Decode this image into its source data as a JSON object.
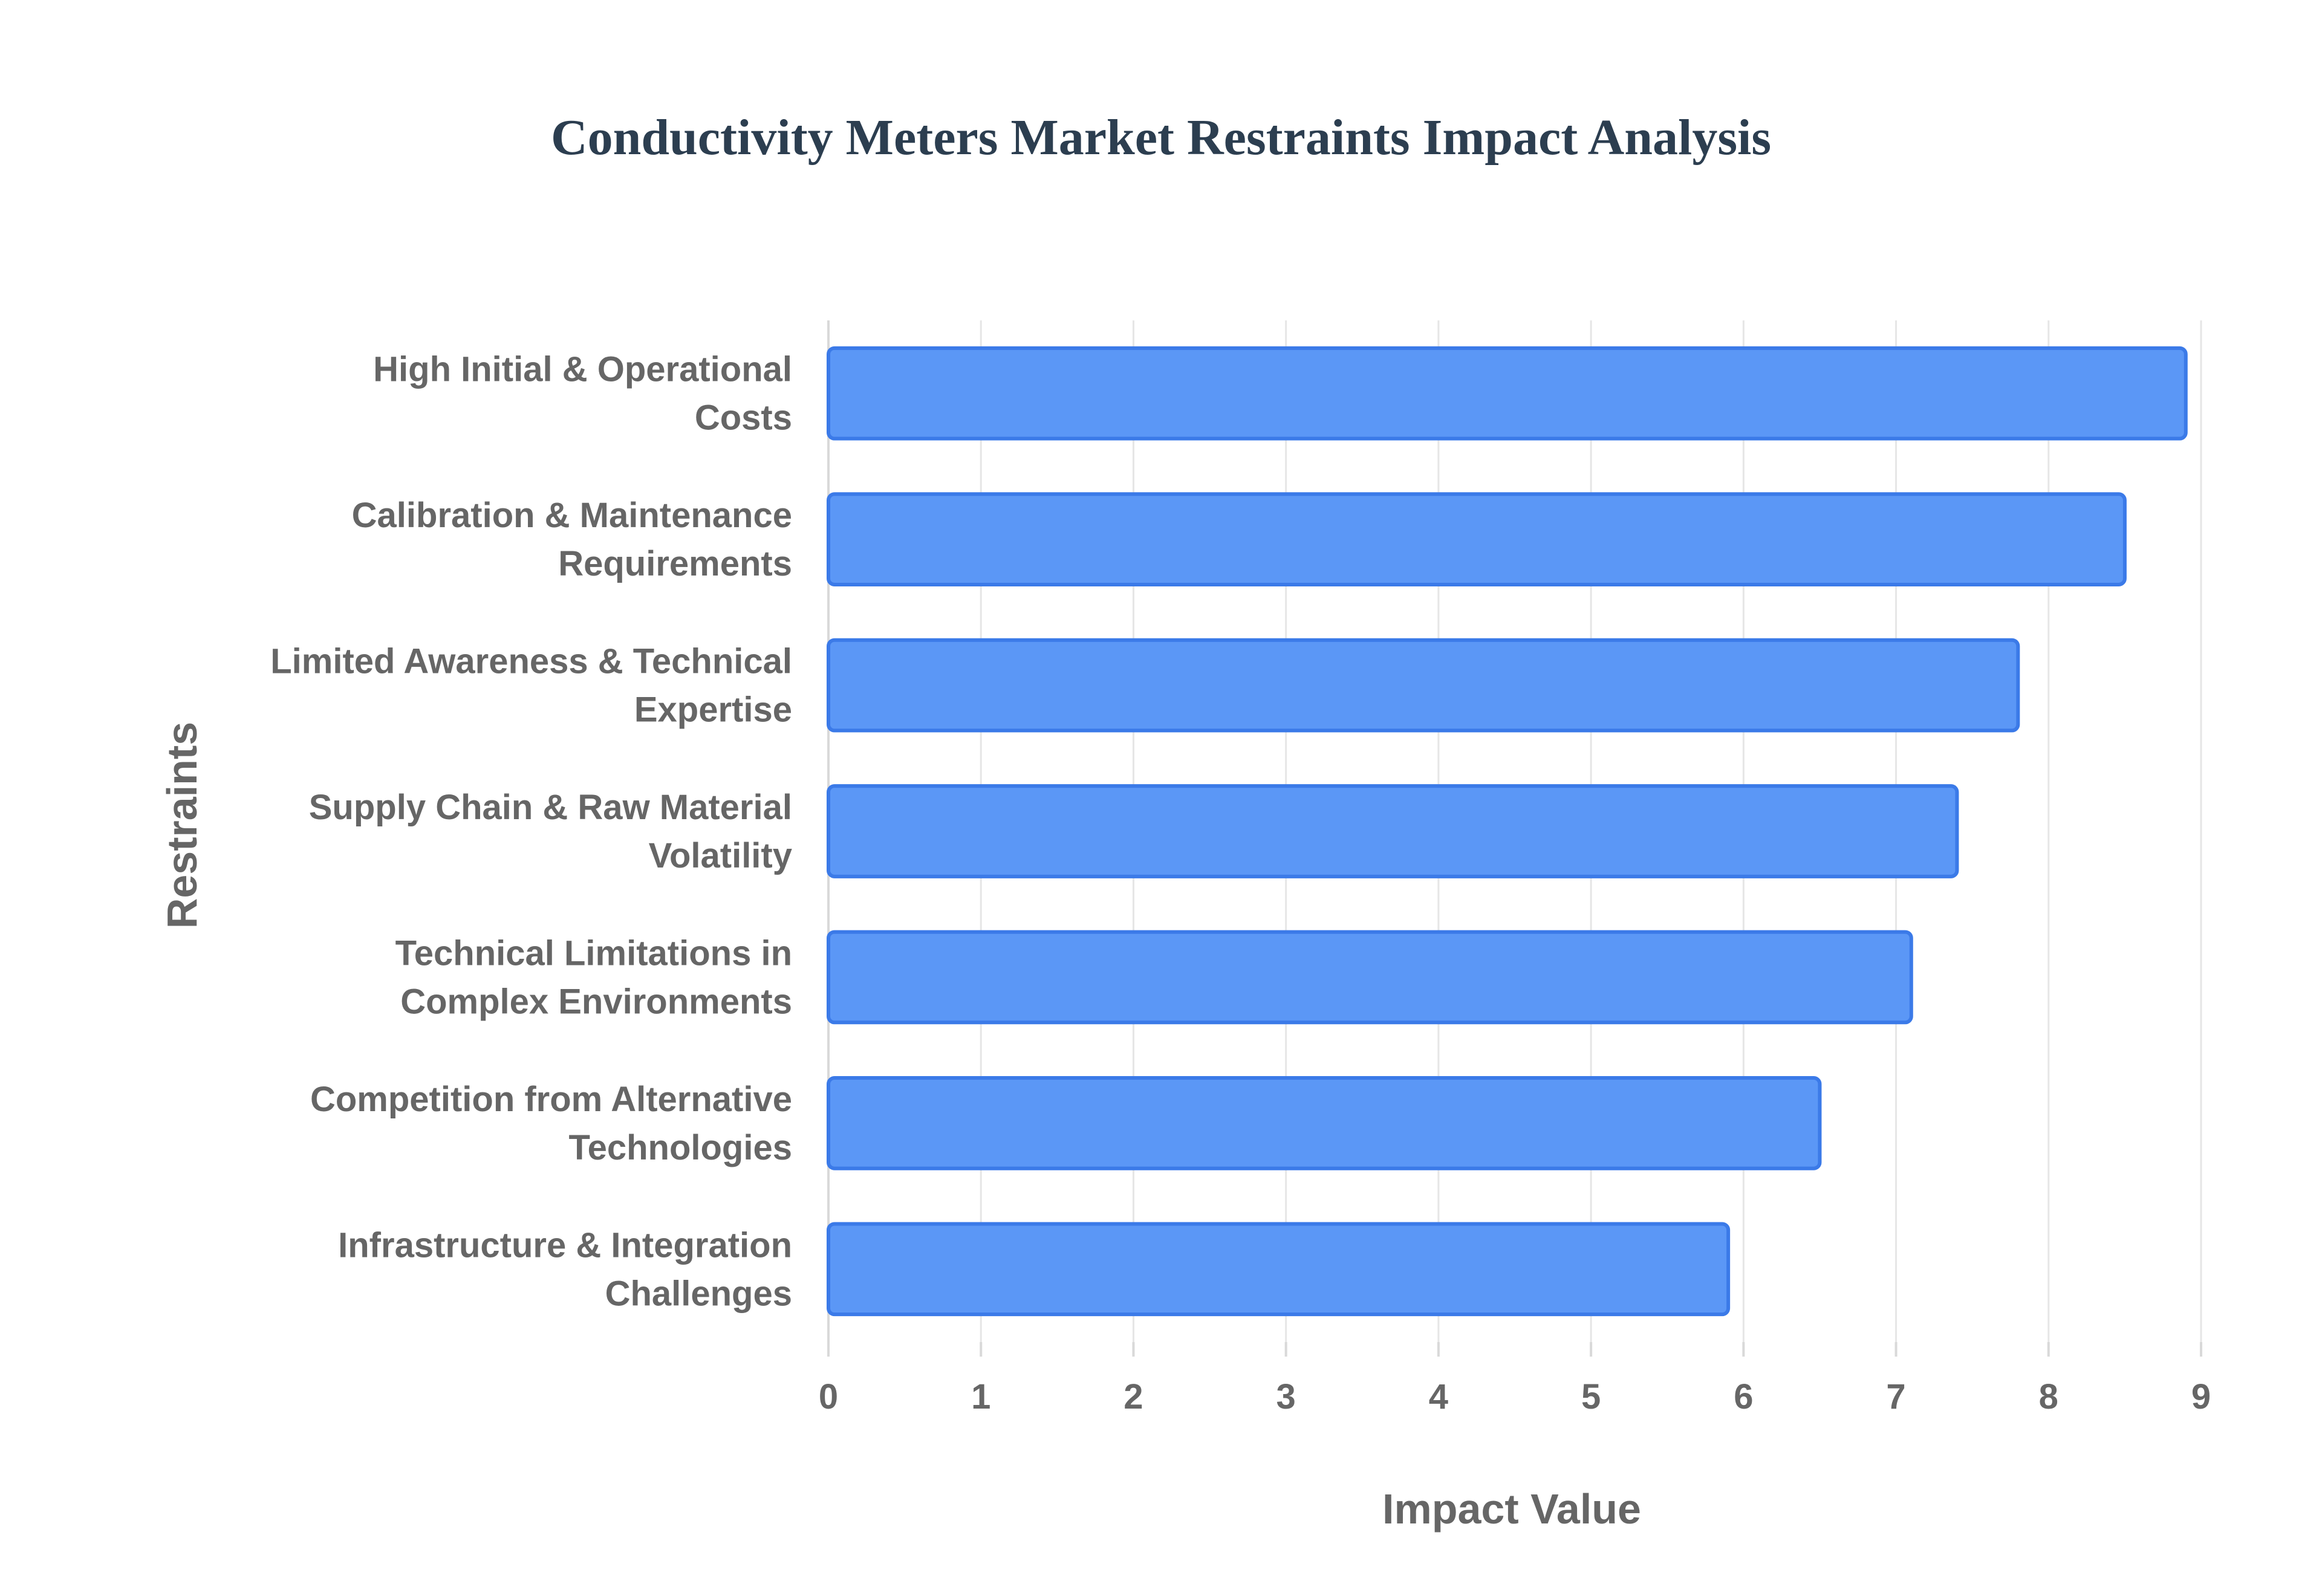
{
  "chart_data": {
    "type": "bar",
    "orientation": "horizontal",
    "title": "Conductivity Meters Market Restraints Impact Analysis",
    "xlabel": "Impact Value",
    "ylabel": "Restraints",
    "xlim": [
      0,
      9
    ],
    "xticks": [
      "0",
      "1",
      "2",
      "3",
      "4",
      "5",
      "6",
      "7",
      "8",
      "9"
    ],
    "grid": true,
    "legend": "none",
    "bar_color": "#5B97F6",
    "bar_border_color": "#3B7AE8",
    "categories": [
      [
        "High Initial & Operational",
        "Costs"
      ],
      [
        "Calibration & Maintenance",
        "Requirements"
      ],
      [
        "Limited Awareness & Technical",
        "Expertise"
      ],
      [
        "Supply Chain & Raw Material",
        "Volatility"
      ],
      [
        "Technical Limitations in",
        "Complex Environments"
      ],
      [
        "Competition from Alternative",
        "Technologies"
      ],
      [
        "Infrastructure & Integration",
        "Challenges"
      ]
    ],
    "values": [
      8.9,
      8.5,
      7.8,
      7.4,
      7.1,
      6.5,
      5.9
    ]
  }
}
